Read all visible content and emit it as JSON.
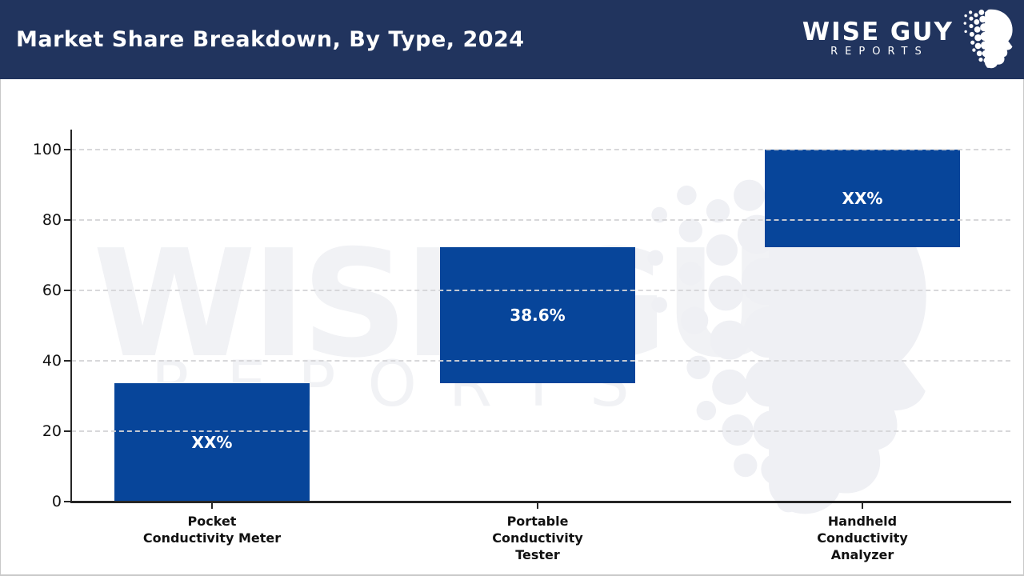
{
  "page": {
    "background": "#ffffff",
    "border_color": "#c9c9c9"
  },
  "header": {
    "title": "Market Share Breakdown, By Type, 2024",
    "background": "#21345e",
    "text_color": "#ffffff",
    "logo": {
      "line1": "WISE GUY",
      "line2": "REPORTS"
    }
  },
  "watermark": {
    "line1": "WISE GUY",
    "line2": "REPORTS"
  },
  "chart_data": {
    "type": "bar",
    "variant": "waterfall-stacked-segments",
    "title": "Market Share Breakdown, By Type, 2024",
    "categories": [
      {
        "lines": [
          "Pocket",
          "Conductivity Meter"
        ]
      },
      {
        "lines": [
          "Portable",
          "Conductivity",
          "Tester"
        ]
      },
      {
        "lines": [
          "Handheld",
          "Conductivity",
          "Analyzer"
        ]
      }
    ],
    "segments": [
      {
        "category": "Pocket Conductivity Meter",
        "start": 0,
        "end": 33.6,
        "value": 33.6,
        "label": "XX%"
      },
      {
        "category": "Portable Conductivity Tester",
        "start": 33.6,
        "end": 72.2,
        "value": 38.6,
        "label": "38.6%"
      },
      {
        "category": "Handheld Conductivity Analyzer",
        "start": 72.2,
        "end": 100,
        "value": 27.8,
        "label": "XX%"
      }
    ],
    "yticks": [
      0,
      20,
      40,
      60,
      80,
      100
    ],
    "ylim": [
      0,
      100
    ],
    "xlabel": "",
    "ylabel": "",
    "grid": "horizontal-dashed",
    "grid_color": "#d5d5d7",
    "bar_color": "#07459a",
    "bar_label_color": "#ffffff",
    "axis_color": "#262626",
    "tick_label_color": "#111111",
    "legend": "none"
  }
}
